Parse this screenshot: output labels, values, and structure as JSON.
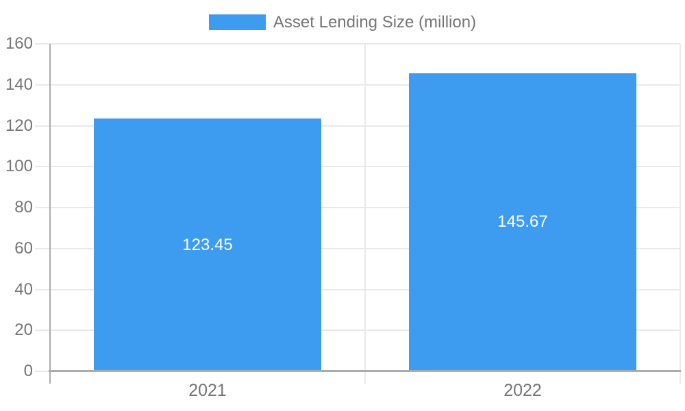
{
  "chart_data": {
    "type": "bar",
    "title": "Asset Lending Size (million)",
    "legend": {
      "label": "Asset Lending Size (million)",
      "position": "top"
    },
    "categories": [
      "2021",
      "2022"
    ],
    "series": [
      {
        "name": "Asset Lending Size (million)",
        "values": [
          123.45,
          145.67
        ],
        "value_labels": [
          "123.45",
          "145.67"
        ]
      }
    ],
    "xlabel": "",
    "ylabel": "",
    "ylim": [
      0,
      160
    ],
    "y_ticks": [
      0,
      20,
      40,
      60,
      80,
      100,
      120,
      140,
      160
    ],
    "grid": true,
    "colors": {
      "bar": "#3D9BF0",
      "grid_line": "#e9e9e9",
      "axis_line": "#ababab",
      "tick_text": "#757575",
      "value_text": "#ffffff",
      "background": "#ffffff"
    }
  }
}
